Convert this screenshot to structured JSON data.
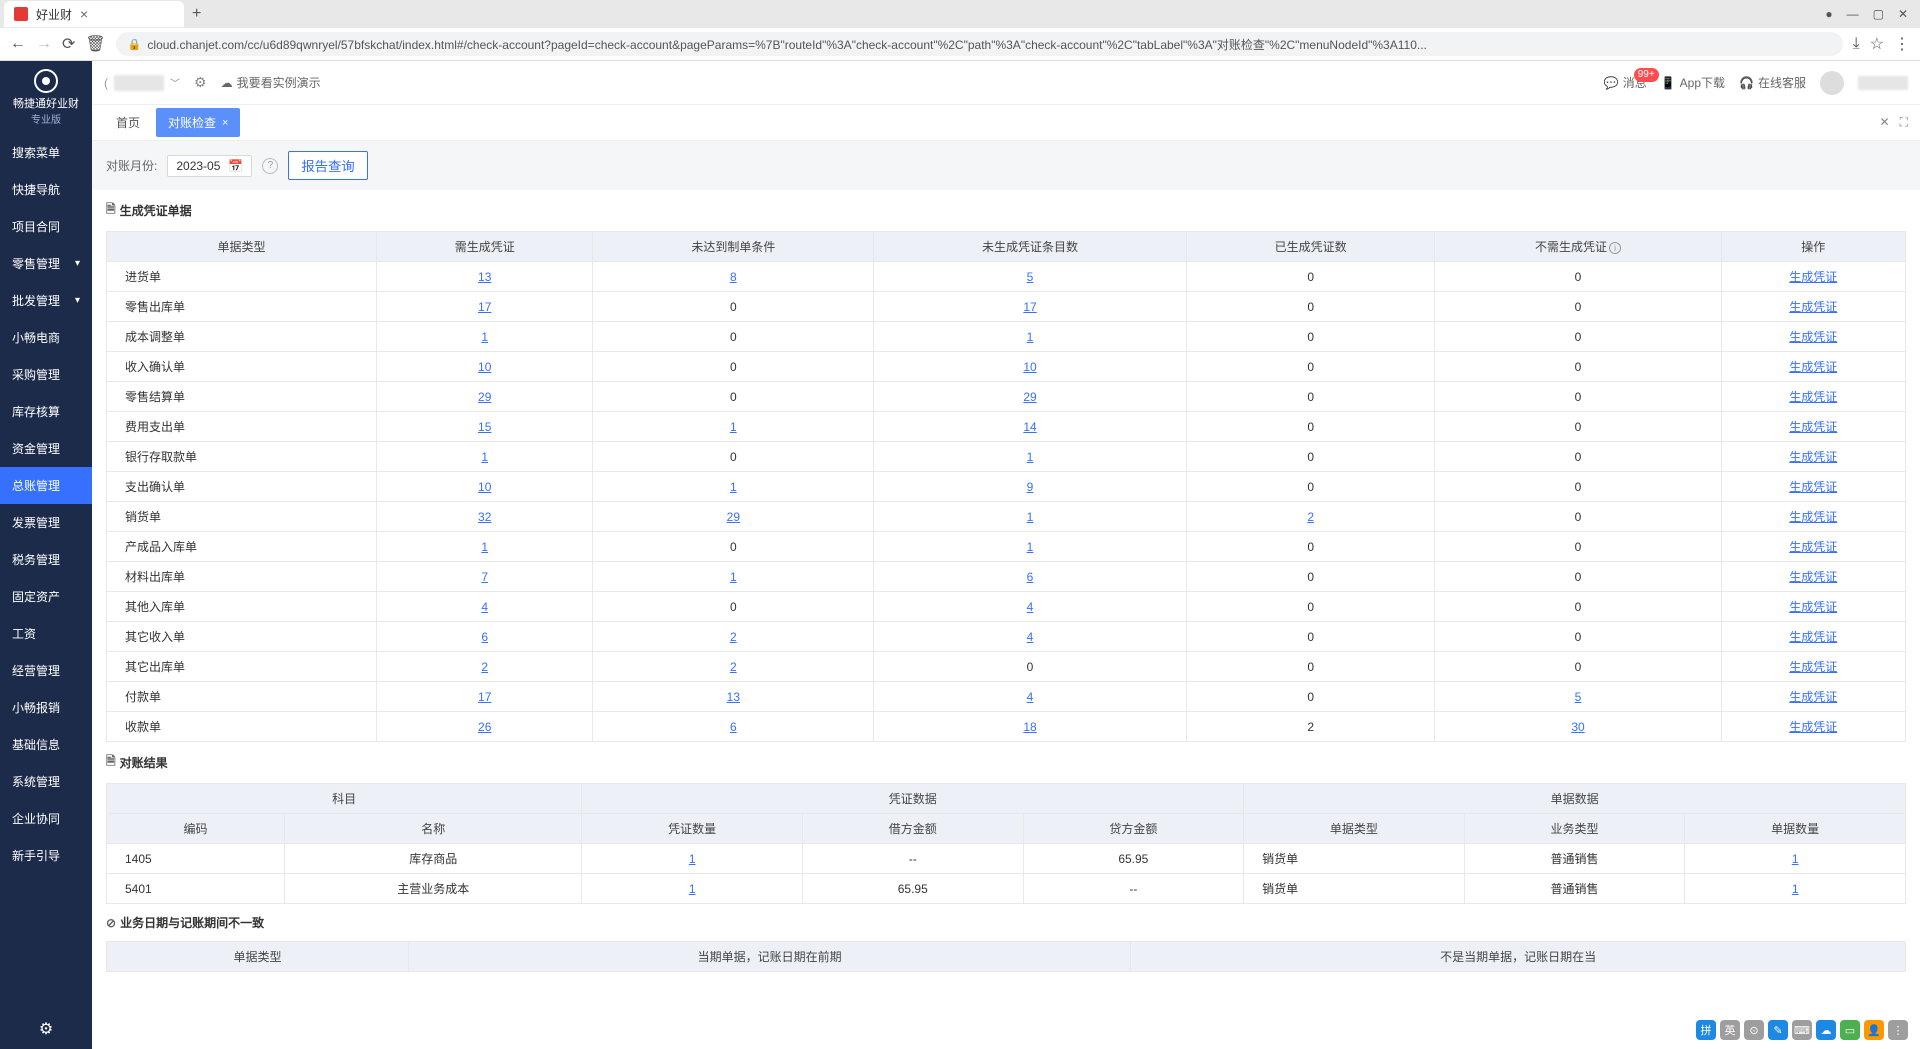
{
  "browser": {
    "tab_title": "好业财",
    "url": "cloud.chanjet.com/cc/u6d89qwnryel/57bfskchat/index.html#/check-account?pageId=check-account&pageParams=%7B\"routeId\"%3A\"check-account\"%2C\"path\"%3A\"check-account\"%2C\"tabLabel\"%3A\"对账检查\"%2C\"menuNodeId\"%3A110..."
  },
  "sidebar": {
    "brand_top": "畅捷通好业财",
    "brand_sub": "专业版",
    "items": [
      {
        "label": "搜索菜单",
        "expandable": false
      },
      {
        "label": "快捷导航",
        "expandable": false
      },
      {
        "label": "项目合同",
        "expandable": false
      },
      {
        "label": "零售管理",
        "expandable": true
      },
      {
        "label": "批发管理",
        "expandable": true
      },
      {
        "label": "小畅电商",
        "expandable": false
      },
      {
        "label": "采购管理",
        "expandable": false
      },
      {
        "label": "库存核算",
        "expandable": false
      },
      {
        "label": "资金管理",
        "expandable": false
      },
      {
        "label": "总账管理",
        "expandable": false,
        "active": true
      },
      {
        "label": "发票管理",
        "expandable": false
      },
      {
        "label": "税务管理",
        "expandable": false
      },
      {
        "label": "固定资产",
        "expandable": false
      },
      {
        "label": "工资",
        "expandable": false
      },
      {
        "label": "经营管理",
        "expandable": false
      },
      {
        "label": "小畅报销",
        "expandable": false
      },
      {
        "label": "基础信息",
        "expandable": false
      },
      {
        "label": "系统管理",
        "expandable": false
      },
      {
        "label": "企业协同",
        "expandable": false
      },
      {
        "label": "新手引导",
        "expandable": false
      }
    ]
  },
  "header": {
    "demo_text": "我要看实例演示",
    "msg": "消息",
    "badge": "99+",
    "app_dl": "App下载",
    "service": "在线客服"
  },
  "tabs": {
    "home": "首页",
    "active": "对账检查"
  },
  "toolbar": {
    "month_label": "对账月份:",
    "month_value": "2023-05",
    "report_btn": "报告查询"
  },
  "section1": {
    "title": "生成凭证单据",
    "columns": [
      "单据类型",
      "需生成凭证",
      "未达到制单条件",
      "未生成凭证条目数",
      "已生成凭证数",
      "不需生成凭证",
      "操作"
    ],
    "action_label": "生成凭证",
    "rows": [
      {
        "type": "进货单",
        "need": "13",
        "pending": "8",
        "ungen": "5",
        "gen": "0",
        "noneed": "0"
      },
      {
        "type": "零售出库单",
        "need": "17",
        "pending": "0",
        "ungen": "17",
        "gen": "0",
        "noneed": "0"
      },
      {
        "type": "成本调整单",
        "need": "1",
        "pending": "0",
        "ungen": "1",
        "gen": "0",
        "noneed": "0"
      },
      {
        "type": "收入确认单",
        "need": "10",
        "pending": "0",
        "ungen": "10",
        "gen": "0",
        "noneed": "0"
      },
      {
        "type": "零售结算单",
        "need": "29",
        "pending": "0",
        "ungen": "29",
        "gen": "0",
        "noneed": "0"
      },
      {
        "type": "费用支出单",
        "need": "15",
        "pending": "1",
        "ungen": "14",
        "gen": "0",
        "noneed": "0"
      },
      {
        "type": "银行存取款单",
        "need": "1",
        "pending": "0",
        "ungen": "1",
        "gen": "0",
        "noneed": "0"
      },
      {
        "type": "支出确认单",
        "need": "10",
        "pending": "1",
        "ungen": "9",
        "gen": "0",
        "noneed": "0"
      },
      {
        "type": "销货单",
        "need": "32",
        "pending": "29",
        "ungen": "1",
        "gen": "2",
        "noneed": "0"
      },
      {
        "type": "产成品入库单",
        "need": "1",
        "pending": "0",
        "ungen": "1",
        "gen": "0",
        "noneed": "0"
      },
      {
        "type": "材料出库单",
        "need": "7",
        "pending": "1",
        "ungen": "6",
        "gen": "0",
        "noneed": "0"
      },
      {
        "type": "其他入库单",
        "need": "4",
        "pending": "0",
        "ungen": "4",
        "gen": "0",
        "noneed": "0"
      },
      {
        "type": "其它收入单",
        "need": "6",
        "pending": "2",
        "ungen": "4",
        "gen": "0",
        "noneed": "0"
      },
      {
        "type": "其它出库单",
        "need": "2",
        "pending": "2",
        "ungen": "0",
        "gen": "0",
        "noneed": "0"
      },
      {
        "type": "付款单",
        "need": "17",
        "pending": "13",
        "ungen": "4",
        "gen": "0",
        "noneed": "5"
      },
      {
        "type": "收款单",
        "need": "26",
        "pending": "6",
        "ungen": "18",
        "gen": "2",
        "noneed": "30"
      }
    ],
    "linked_cols": {
      "need": true,
      "ungen": true
    },
    "special_links": {
      "15": {
        "noneed": true
      },
      "8": {
        "gen": true
      },
      "14": {
        "noneed": true
      }
    }
  },
  "section2": {
    "title": "对账结果",
    "header1": [
      "科目",
      "凭证数据",
      "单据数据"
    ],
    "header2": [
      "编码",
      "名称",
      "凭证数量",
      "借方金额",
      "贷方金额",
      "单据类型",
      "业务类型",
      "单据数量"
    ],
    "rows": [
      {
        "code": "1405",
        "name": "库存商品",
        "vcount": "1",
        "debit": "--",
        "credit": "65.95",
        "dtype": "销货单",
        "btype": "普通销售",
        "dcount": "1"
      },
      {
        "code": "5401",
        "name": "主营业务成本",
        "vcount": "1",
        "debit": "65.95",
        "credit": "--",
        "dtype": "销货单",
        "btype": "普通销售",
        "dcount": "1"
      }
    ]
  },
  "section3": {
    "title": "业务日期与记账期间不一致",
    "columns": [
      "单据类型",
      "当期单据，记账日期在前期",
      "不是当期单据，记账日期在当"
    ]
  }
}
